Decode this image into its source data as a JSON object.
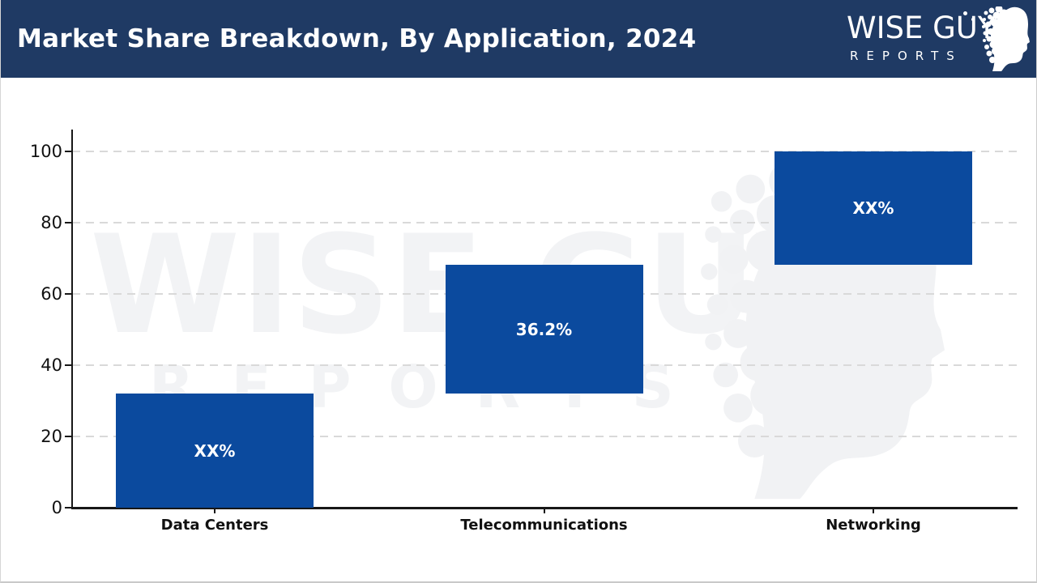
{
  "header": {
    "title": "Market Share Breakdown, By Application, 2024",
    "bg_color": "#1f3a64",
    "logo": {
      "wordmark": "WISE GUY",
      "subtext": "REPORTS"
    }
  },
  "watermark": {
    "line1": "WISE GUY",
    "line2": "REPORTS"
  },
  "chart_data": {
    "type": "bar",
    "variant": "floating-segment-waterfall",
    "title": "",
    "xlabel": "",
    "ylabel": "",
    "ylim": [
      0,
      100
    ],
    "yticks": [
      0,
      20,
      40,
      60,
      80,
      100
    ],
    "grid": "horizontal-dashed",
    "legend": "none",
    "bar_color": "#0b4a9e",
    "categories": [
      "Data Centers",
      "Telecommunications",
      "Networking"
    ],
    "bars": [
      {
        "category": "Data Centers",
        "start": 0,
        "end": 32,
        "height": 32,
        "value_label": "XX%"
      },
      {
        "category": "Telecommunications",
        "start": 32,
        "end": 68.2,
        "height": 36.2,
        "value_label": "36.2%"
      },
      {
        "category": "Networking",
        "start": 68.2,
        "end": 100,
        "height": 31.8,
        "value_label": "XX%"
      }
    ]
  }
}
